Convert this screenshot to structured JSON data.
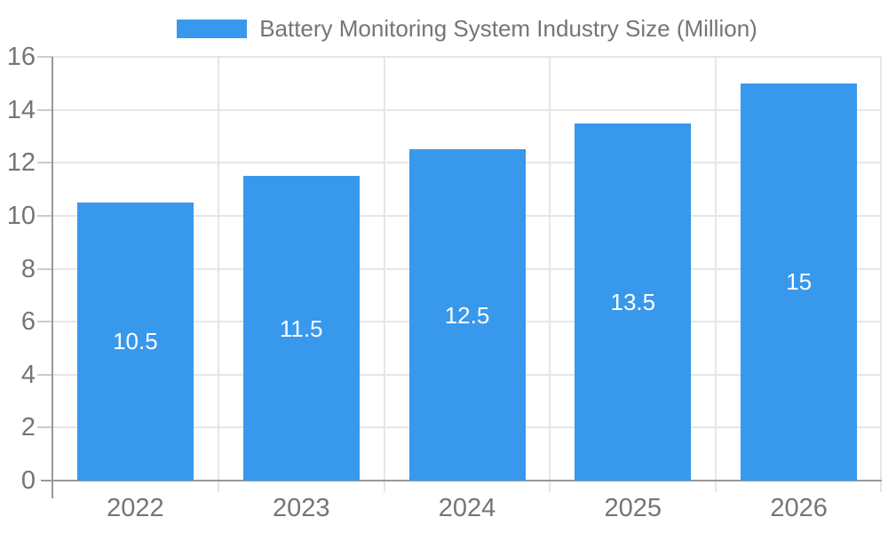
{
  "legend": {
    "label": "Battery Monitoring System Industry Size (Million)"
  },
  "chart_data": {
    "type": "bar",
    "title": "Battery Monitoring System Industry Size (Million)",
    "categories": [
      "2022",
      "2023",
      "2024",
      "2025",
      "2026"
    ],
    "values": [
      10.5,
      11.5,
      12.5,
      13.5,
      15
    ],
    "value_labels": [
      "10.5",
      "11.5",
      "12.5",
      "13.5",
      "15"
    ],
    "xlabel": "",
    "ylabel": "",
    "ylim": [
      0,
      16
    ],
    "yticks": [
      0,
      2,
      4,
      6,
      8,
      10,
      12,
      14,
      16
    ],
    "grid": true,
    "legend_position": "top",
    "colors": {
      "bar": "#3898ec",
      "bar_label": "#ffffff",
      "axis_line": "#999999",
      "gridline": "#e6e6e6",
      "tick": "#cccccc",
      "axis_text": "#757575"
    }
  }
}
